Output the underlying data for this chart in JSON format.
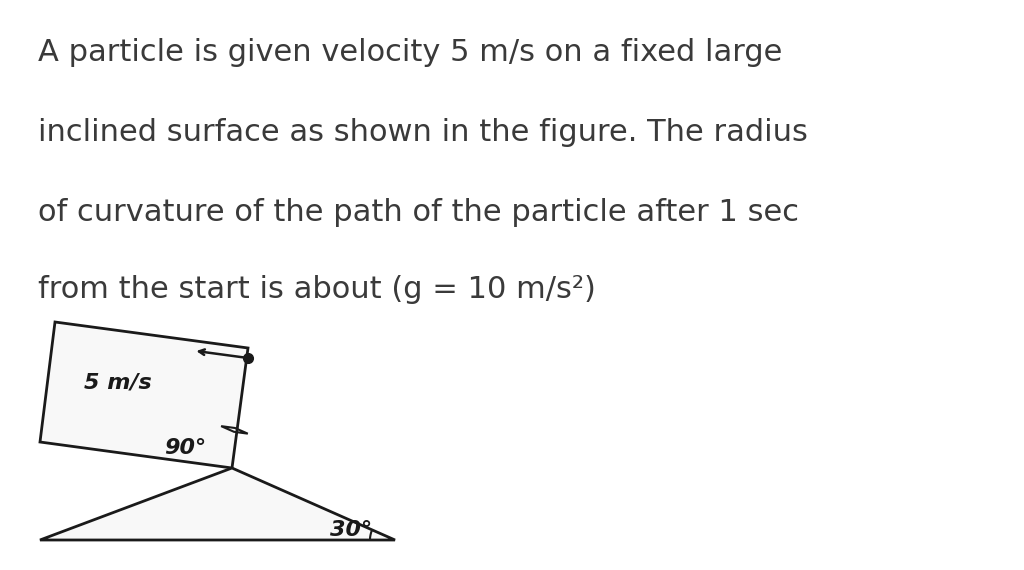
{
  "title_lines": [
    "A particle is given velocity 5 m/s on a fixed large",
    "inclined surface as shown in the figure. The radius",
    "of curvature of the path of the particle after 1 sec",
    "from the start is about (g = 10 m/s²)"
  ],
  "text_color": "#3a3a3a",
  "bg_color": "#ffffff",
  "text_fontsize": 22,
  "label_5ms": "5 m/s",
  "label_90": "90°",
  "label_30": "30°",
  "line_color": "#1a1a1a",
  "fill_color": "#f8f8f8"
}
